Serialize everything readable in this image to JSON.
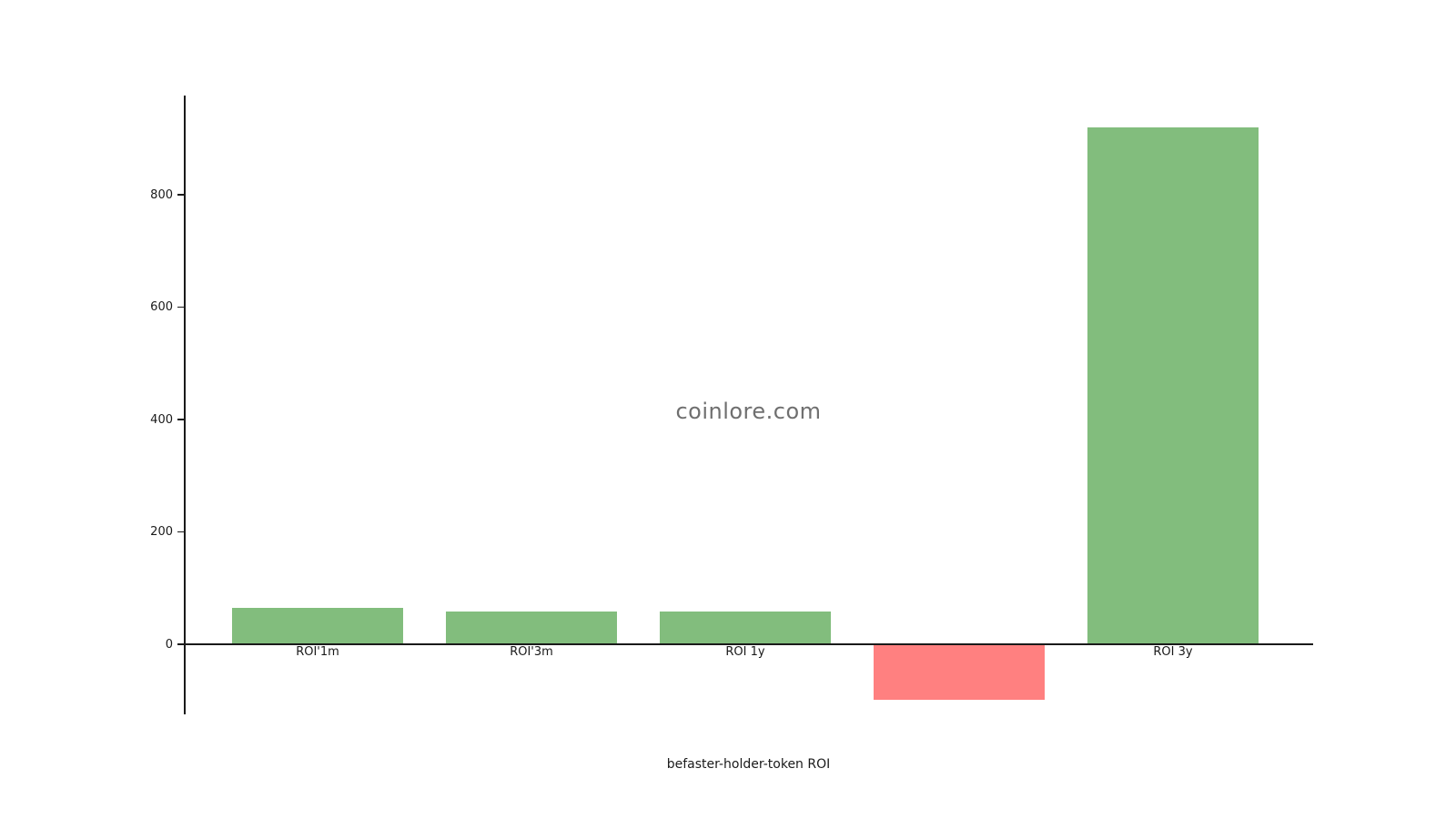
{
  "chart_data": {
    "type": "bar",
    "title": "befaster-holder-token ROI",
    "watermark": "coinlore.com",
    "categories": [
      "ROI'1m",
      "ROI'3m",
      "ROI 1y",
      "",
      "ROI 3y"
    ],
    "values": [
      65,
      58,
      58,
      -97,
      920
    ],
    "bar_colors": [
      "#82bd7d",
      "#82bd7d",
      "#82bd7d",
      "#ff8080",
      "#82bd7d"
    ],
    "positive_color": "#82bd7d",
    "negative_color": "#ff8080",
    "yticks": [
      0,
      200,
      400,
      600,
      800
    ],
    "ylim": [
      -125,
      977
    ],
    "xlabel": "",
    "ylabel": "",
    "grid": false,
    "legend": null,
    "axis_color": "#1a1a1a",
    "text_color": "#1a1a1a",
    "watermark_color": "#6f6f6f",
    "background_color": "#ffffff"
  }
}
